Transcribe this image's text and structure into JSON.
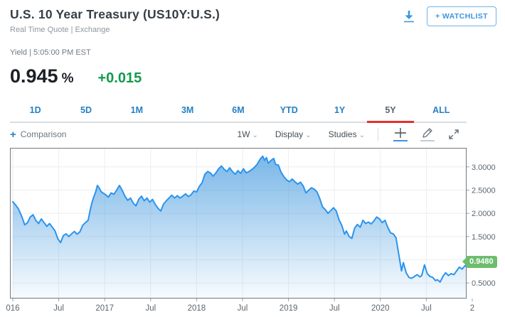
{
  "header": {
    "title": "U.S. 10 Year Treasury (US10Y:U.S.)",
    "subtitle": "Real Time Quote | Exchange",
    "quote_label": "Yield | 5:05:00 PM EST",
    "price": "0.945",
    "price_unit": "%",
    "change": "+0.015",
    "watchlist_label": "+ WATCHLIST"
  },
  "colors": {
    "accent_blue": "#2580c3",
    "icon_blue": "#3d95e0",
    "change_green": "#109a4d",
    "badge_green": "#6cbd6e",
    "tab_underline_red": "#e43030",
    "line_blue": "#2b94ee"
  },
  "tabs": [
    {
      "label": "1D",
      "selected": false
    },
    {
      "label": "5D",
      "selected": false
    },
    {
      "label": "1M",
      "selected": false
    },
    {
      "label": "3M",
      "selected": false
    },
    {
      "label": "6M",
      "selected": false
    },
    {
      "label": "YTD",
      "selected": false
    },
    {
      "label": "1Y",
      "selected": false
    },
    {
      "label": "5Y",
      "selected": true
    },
    {
      "label": "ALL",
      "selected": false
    }
  ],
  "toolbar": {
    "comparison_plus": "+",
    "comparison_label": "Comparison",
    "interval_label": "1W",
    "display_label": "Display",
    "studies_label": "Studies",
    "chevron": "⌄"
  },
  "chart_data": {
    "type": "area",
    "series_name": "US10Y yield",
    "x_range": [
      2016.0,
      2021.0
    ],
    "ylim": [
      0.165,
      3.41
    ],
    "grid": true,
    "legend": "none",
    "x_tick_labels": [
      "016",
      "Jul",
      "2017",
      "Jul",
      "2018",
      "Jul",
      "2019",
      "Jul",
      "2020",
      "Jul",
      "2"
    ],
    "y_tick_labels": [
      {
        "value": 3.0,
        "label": "3.0000"
      },
      {
        "value": 2.5,
        "label": "2.5000"
      },
      {
        "value": 2.0,
        "label": "2.0000"
      },
      {
        "value": 1.5,
        "label": "1.5000"
      },
      {
        "value": 0.5,
        "label": "0.5000"
      }
    ],
    "y_gridlines": [
      0.5,
      1.0,
      1.5,
      2.0,
      2.5,
      3.0
    ],
    "last_price": 0.948,
    "last_price_label": "0.9480",
    "series": [
      {
        "name": "US10Y",
        "points": [
          [
            2016.0,
            2.25
          ],
          [
            2016.03,
            2.18
          ],
          [
            2016.06,
            2.1
          ],
          [
            2016.1,
            1.92
          ],
          [
            2016.13,
            1.75
          ],
          [
            2016.16,
            1.8
          ],
          [
            2016.19,
            1.92
          ],
          [
            2016.22,
            1.97
          ],
          [
            2016.25,
            1.85
          ],
          [
            2016.28,
            1.78
          ],
          [
            2016.31,
            1.88
          ],
          [
            2016.34,
            1.8
          ],
          [
            2016.37,
            1.72
          ],
          [
            2016.4,
            1.78
          ],
          [
            2016.43,
            1.7
          ],
          [
            2016.46,
            1.62
          ],
          [
            2016.49,
            1.45
          ],
          [
            2016.52,
            1.37
          ],
          [
            2016.55,
            1.52
          ],
          [
            2016.58,
            1.56
          ],
          [
            2016.61,
            1.5
          ],
          [
            2016.64,
            1.56
          ],
          [
            2016.67,
            1.61
          ],
          [
            2016.7,
            1.55
          ],
          [
            2016.73,
            1.6
          ],
          [
            2016.76,
            1.74
          ],
          [
            2016.79,
            1.8
          ],
          [
            2016.82,
            1.85
          ],
          [
            2016.84,
            2.05
          ],
          [
            2016.86,
            2.22
          ],
          [
            2016.88,
            2.35
          ],
          [
            2016.9,
            2.45
          ],
          [
            2016.92,
            2.6
          ],
          [
            2016.94,
            2.55
          ],
          [
            2016.96,
            2.47
          ],
          [
            2016.98,
            2.44
          ],
          [
            2017.01,
            2.4
          ],
          [
            2017.04,
            2.35
          ],
          [
            2017.07,
            2.44
          ],
          [
            2017.1,
            2.41
          ],
          [
            2017.13,
            2.5
          ],
          [
            2017.16,
            2.6
          ],
          [
            2017.19,
            2.5
          ],
          [
            2017.22,
            2.37
          ],
          [
            2017.25,
            2.28
          ],
          [
            2017.28,
            2.33
          ],
          [
            2017.31,
            2.22
          ],
          [
            2017.34,
            2.16
          ],
          [
            2017.37,
            2.3
          ],
          [
            2017.4,
            2.37
          ],
          [
            2017.43,
            2.27
          ],
          [
            2017.46,
            2.33
          ],
          [
            2017.49,
            2.24
          ],
          [
            2017.52,
            2.3
          ],
          [
            2017.55,
            2.19
          ],
          [
            2017.58,
            2.11
          ],
          [
            2017.61,
            2.05
          ],
          [
            2017.64,
            2.2
          ],
          [
            2017.67,
            2.27
          ],
          [
            2017.7,
            2.33
          ],
          [
            2017.73,
            2.39
          ],
          [
            2017.76,
            2.33
          ],
          [
            2017.79,
            2.38
          ],
          [
            2017.82,
            2.33
          ],
          [
            2017.85,
            2.37
          ],
          [
            2017.88,
            2.42
          ],
          [
            2017.91,
            2.36
          ],
          [
            2017.94,
            2.4
          ],
          [
            2017.97,
            2.48
          ],
          [
            2018.0,
            2.46
          ],
          [
            2018.03,
            2.58
          ],
          [
            2018.06,
            2.66
          ],
          [
            2018.09,
            2.84
          ],
          [
            2018.12,
            2.9
          ],
          [
            2018.15,
            2.87
          ],
          [
            2018.18,
            2.8
          ],
          [
            2018.21,
            2.87
          ],
          [
            2018.24,
            2.96
          ],
          [
            2018.27,
            3.02
          ],
          [
            2018.3,
            2.95
          ],
          [
            2018.33,
            2.9
          ],
          [
            2018.36,
            2.98
          ],
          [
            2018.39,
            2.9
          ],
          [
            2018.42,
            2.84
          ],
          [
            2018.45,
            2.92
          ],
          [
            2018.48,
            2.86
          ],
          [
            2018.51,
            2.96
          ],
          [
            2018.54,
            2.87
          ],
          [
            2018.57,
            2.9
          ],
          [
            2018.6,
            2.94
          ],
          [
            2018.63,
            2.99
          ],
          [
            2018.66,
            3.06
          ],
          [
            2018.69,
            3.16
          ],
          [
            2018.72,
            3.23
          ],
          [
            2018.74,
            3.14
          ],
          [
            2018.76,
            3.2
          ],
          [
            2018.78,
            3.08
          ],
          [
            2018.81,
            3.14
          ],
          [
            2018.84,
            3.18
          ],
          [
            2018.86,
            3.05
          ],
          [
            2018.89,
            3.04
          ],
          [
            2018.92,
            2.88
          ],
          [
            2018.95,
            2.79
          ],
          [
            2018.98,
            2.72
          ],
          [
            2019.01,
            2.68
          ],
          [
            2019.04,
            2.74
          ],
          [
            2019.07,
            2.68
          ],
          [
            2019.1,
            2.63
          ],
          [
            2019.13,
            2.67
          ],
          [
            2019.16,
            2.59
          ],
          [
            2019.19,
            2.44
          ],
          [
            2019.22,
            2.5
          ],
          [
            2019.25,
            2.55
          ],
          [
            2019.28,
            2.52
          ],
          [
            2019.31,
            2.46
          ],
          [
            2019.34,
            2.32
          ],
          [
            2019.37,
            2.14
          ],
          [
            2019.4,
            2.08
          ],
          [
            2019.43,
            2.0
          ],
          [
            2019.46,
            2.06
          ],
          [
            2019.49,
            2.12
          ],
          [
            2019.52,
            2.05
          ],
          [
            2019.55,
            1.86
          ],
          [
            2019.58,
            1.74
          ],
          [
            2019.61,
            1.55
          ],
          [
            2019.63,
            1.62
          ],
          [
            2019.66,
            1.5
          ],
          [
            2019.69,
            1.46
          ],
          [
            2019.72,
            1.68
          ],
          [
            2019.75,
            1.76
          ],
          [
            2019.78,
            1.7
          ],
          [
            2019.81,
            1.85
          ],
          [
            2019.84,
            1.78
          ],
          [
            2019.87,
            1.81
          ],
          [
            2019.9,
            1.77
          ],
          [
            2019.93,
            1.84
          ],
          [
            2019.96,
            1.92
          ],
          [
            2019.99,
            1.88
          ],
          [
            2020.02,
            1.8
          ],
          [
            2020.05,
            1.85
          ],
          [
            2020.08,
            1.7
          ],
          [
            2020.11,
            1.58
          ],
          [
            2020.14,
            1.56
          ],
          [
            2020.17,
            1.47
          ],
          [
            2020.2,
            1.12
          ],
          [
            2020.23,
            0.76
          ],
          [
            2020.25,
            0.94
          ],
          [
            2020.28,
            0.72
          ],
          [
            2020.31,
            0.62
          ],
          [
            2020.34,
            0.6
          ],
          [
            2020.37,
            0.64
          ],
          [
            2020.4,
            0.68
          ],
          [
            2020.43,
            0.63
          ],
          [
            2020.45,
            0.66
          ],
          [
            2020.48,
            0.89
          ],
          [
            2020.51,
            0.7
          ],
          [
            2020.54,
            0.64
          ],
          [
            2020.57,
            0.62
          ],
          [
            2020.6,
            0.55
          ],
          [
            2020.62,
            0.57
          ],
          [
            2020.65,
            0.52
          ],
          [
            2020.68,
            0.64
          ],
          [
            2020.71,
            0.72
          ],
          [
            2020.74,
            0.66
          ],
          [
            2020.77,
            0.7
          ],
          [
            2020.8,
            0.68
          ],
          [
            2020.83,
            0.76
          ],
          [
            2020.86,
            0.84
          ],
          [
            2020.89,
            0.8
          ],
          [
            2020.92,
            0.87
          ],
          [
            2020.94,
            0.86
          ],
          [
            2020.96,
            0.948
          ]
        ]
      }
    ]
  }
}
